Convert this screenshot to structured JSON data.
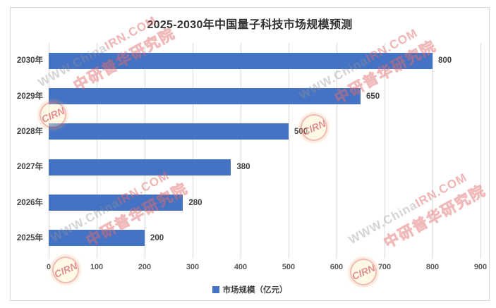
{
  "chart_data": {
    "type": "bar",
    "orientation": "horizontal",
    "title": "2025-2030年中国量子科技市场规模预测",
    "categories": [
      "2030年",
      "2029年",
      "2028年",
      "2027年",
      "2026年",
      "2025年"
    ],
    "values": [
      800,
      650,
      500,
      380,
      280,
      200
    ],
    "xlim": [
      0,
      900
    ],
    "x_ticks": [
      0,
      100,
      200,
      300,
      400,
      500,
      600,
      700,
      800,
      900
    ],
    "legend": "市场规模（亿元）",
    "bar_color": "#4472C4",
    "grid": true,
    "legend_position": "bottom"
  },
  "watermark": {
    "url_prefix": "WWW.China",
    "url_suffix": "IRN.COM",
    "brand": "中研普华研究院",
    "logo_text": "CIRN"
  }
}
